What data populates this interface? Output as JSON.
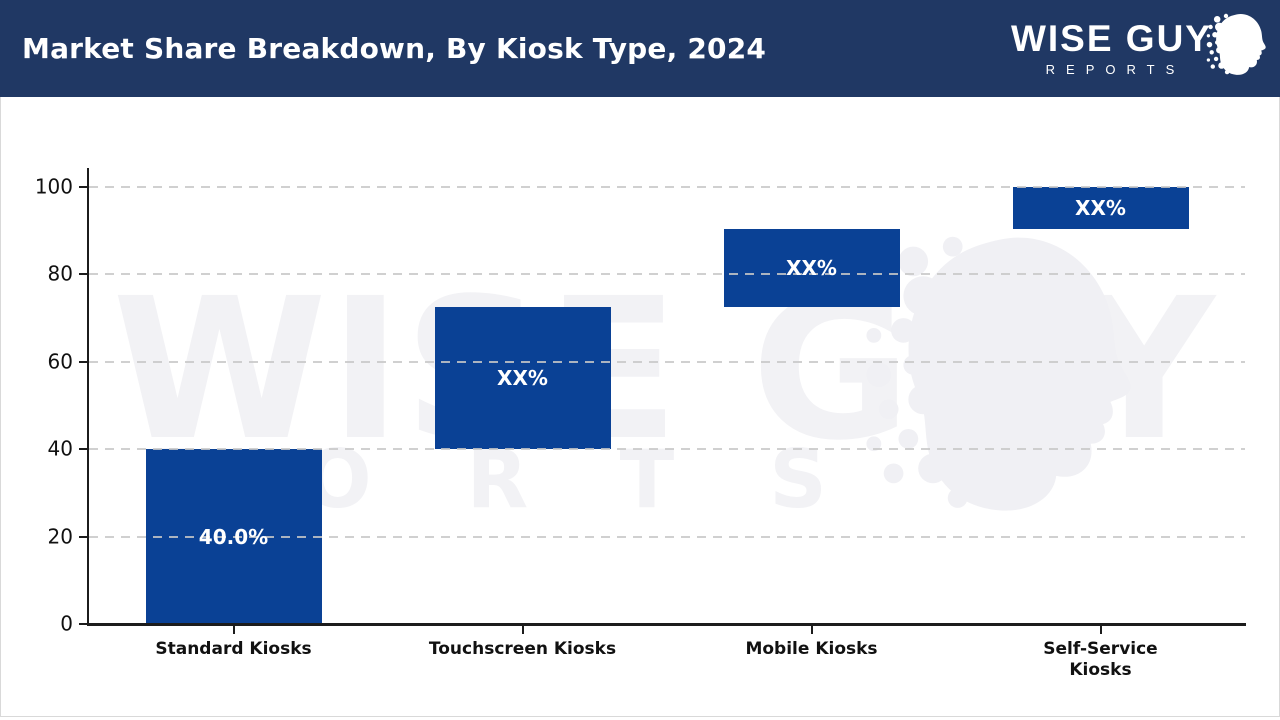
{
  "header": {
    "title": "Market Share Breakdown, By Kiosk Type, 2024",
    "logo": {
      "name_line": "WISE GUY",
      "reports_line": "REPORTS",
      "face_icon": "dotted-face-profile"
    }
  },
  "watermark": {
    "line1": "WISE GUY",
    "line2": "PORTS",
    "face_icon": "dotted-face-profile"
  },
  "colors": {
    "header_bg": "#203864",
    "bar": "#0a4195",
    "axis": "#1c1c1c",
    "gridline": "#c8c8c8",
    "value_label": "#ffffff",
    "watermark": "#f2f2f5"
  },
  "chart_data": {
    "type": "bar",
    "variant": "waterfall",
    "title": "Market Share Breakdown, By Kiosk Type, 2024",
    "categories": [
      "Standard Kiosks",
      "Touchscreen Kiosks",
      "Mobile Kiosks",
      "Self-Service Kiosks"
    ],
    "category_label_lines": [
      [
        "Standard Kiosks"
      ],
      [
        "Touchscreen Kiosks"
      ],
      [
        "Mobile Kiosks"
      ],
      [
        "Self-Service",
        "Kiosks"
      ]
    ],
    "segments": [
      {
        "category": "Standard Kiosks",
        "start": 0,
        "end": 40,
        "label": "40.0%"
      },
      {
        "category": "Touchscreen Kiosks",
        "start": 40,
        "end": 72.5,
        "label": "XX%"
      },
      {
        "category": "Mobile Kiosks",
        "start": 72.5,
        "end": 90.5,
        "label": "XX%"
      },
      {
        "category": "Self-Service Kiosks",
        "start": 90.5,
        "end": 100,
        "label": "XX%"
      }
    ],
    "yticks": [
      0,
      20,
      40,
      60,
      80,
      100
    ],
    "ylim": [
      0,
      100
    ],
    "xlabel": "",
    "ylabel": "",
    "grid": "horizontal-dashed",
    "legend": "none"
  }
}
